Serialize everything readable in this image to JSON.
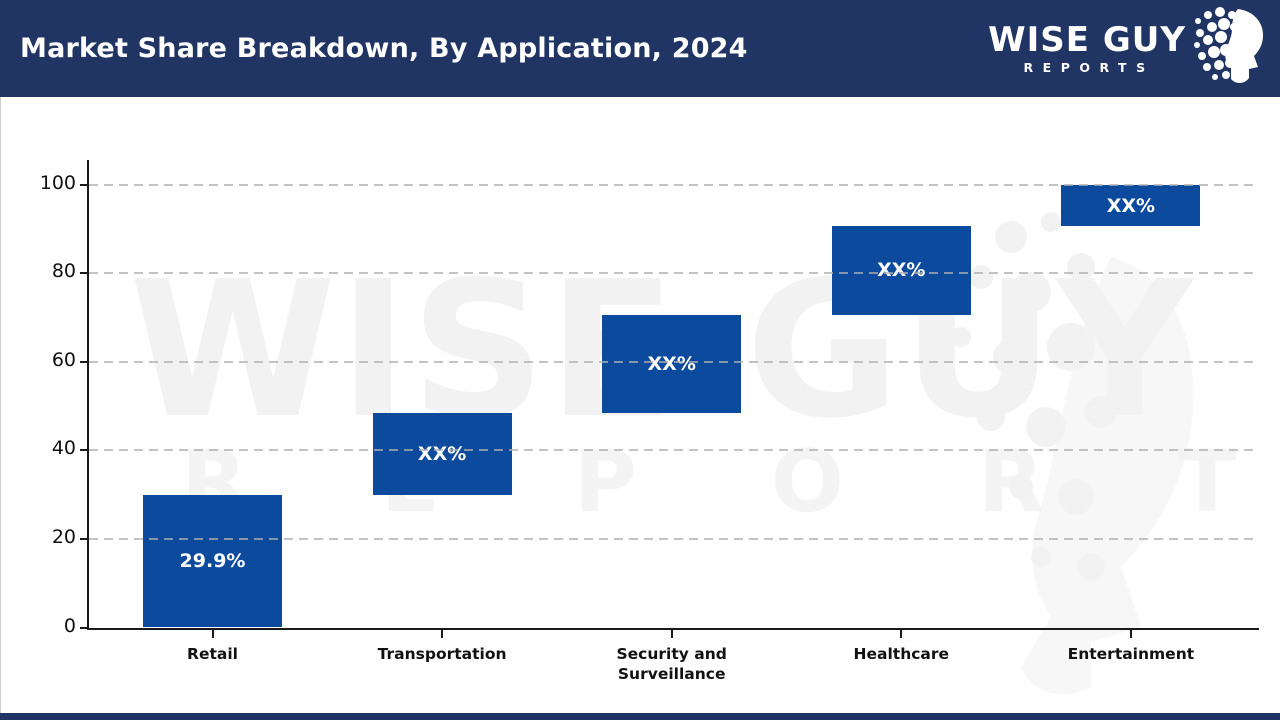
{
  "header": {
    "title": "Market Share Breakdown, By Application, 2024",
    "logo": {
      "line1": "WISE GUY",
      "line2": "REPORTS"
    },
    "bg_color": "#213564"
  },
  "watermark": {
    "line1": "WISE GUY",
    "line2": "R E P O R T S"
  },
  "chart_data": {
    "type": "bar",
    "subtype": "waterfall",
    "title": "Market Share Breakdown, By Application, 2024",
    "xlabel": "",
    "ylabel": "",
    "ylim": [
      0,
      105
    ],
    "y_ticks": [
      0,
      20,
      40,
      60,
      80,
      100
    ],
    "grid": true,
    "bar_color": "#0c4a9e",
    "categories": [
      "Retail",
      "Transportation",
      "Security and\nSurveillance",
      "Healthcare",
      "Entertainment"
    ],
    "segments": [
      {
        "category": "Retail",
        "start": 0,
        "end": 29.9,
        "label": "29.9%"
      },
      {
        "category": "Transportation",
        "start": 29.9,
        "end": 48.5,
        "label": "XX%"
      },
      {
        "category": "Security and Surveillance",
        "start": 48.5,
        "end": 70.6,
        "label": "XX%"
      },
      {
        "category": "Healthcare",
        "start": 70.6,
        "end": 90.6,
        "label": "XX%"
      },
      {
        "category": "Entertainment",
        "start": 90.6,
        "end": 99.8,
        "label": "XX%"
      }
    ]
  },
  "footer": {
    "bg_color": "#213564"
  }
}
